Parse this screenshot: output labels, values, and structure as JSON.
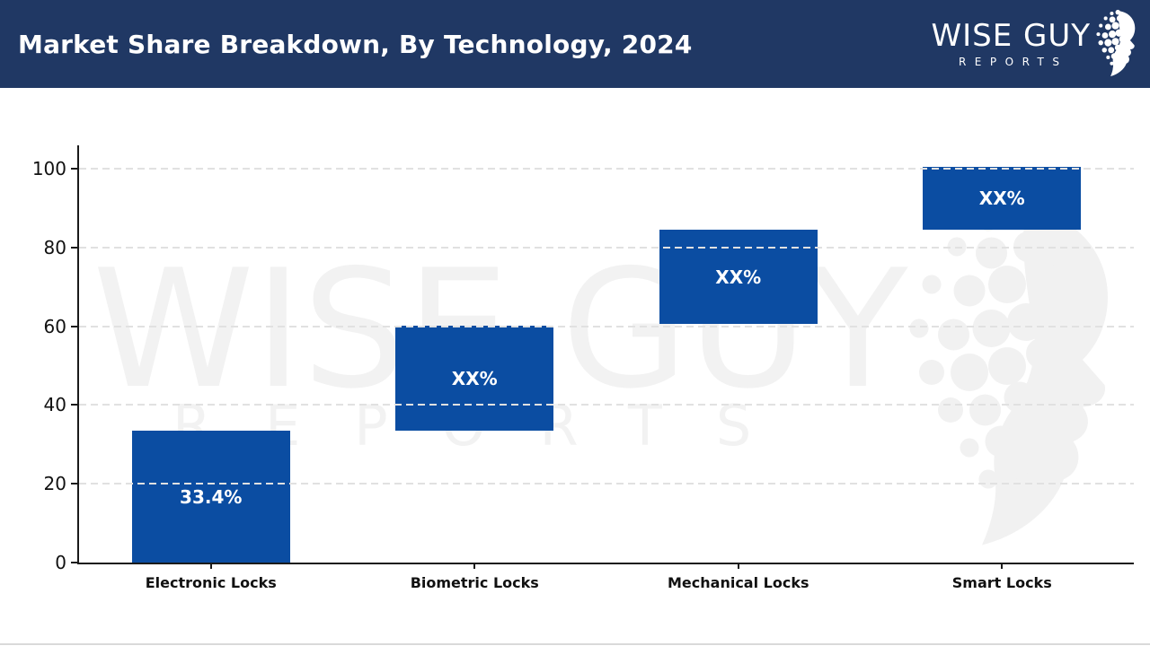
{
  "header": {
    "title": "Market Share Breakdown, By Technology, 2024",
    "logo": {
      "name": "WISE GUY",
      "sub": "REPORTS"
    }
  },
  "watermark": {
    "name": "WISE GUY",
    "sub": "REPORTS"
  },
  "chart_data": {
    "type": "bar",
    "variant": "floating-waterfall",
    "title": "Market Share Breakdown, By Technology, 2024",
    "unit": "%",
    "categories": [
      "Electronic Locks",
      "Biometric Locks",
      "Mechanical Locks",
      "Smart Locks"
    ],
    "series": [
      {
        "name": "Market Share",
        "segments": [
          {
            "category": "Electronic Locks",
            "start": 0,
            "end": 33.4,
            "label": "33.4%"
          },
          {
            "category": "Biometric Locks",
            "start": 33.4,
            "end": 60.2,
            "label": "XX%"
          },
          {
            "category": "Mechanical Locks",
            "start": 60.6,
            "end": 84.4,
            "label": "XX%"
          },
          {
            "category": "Smart Locks",
            "start": 84.6,
            "end": 100.4,
            "label": "XX%"
          }
        ]
      }
    ],
    "ylim": [
      0,
      100
    ],
    "yticks": [
      0,
      20,
      40,
      60,
      80,
      100
    ],
    "xlabel": "",
    "ylabel": "",
    "grid": "horizontal-dashed, drawn above bars",
    "legend": "none",
    "colors": {
      "bar": "#0b4da2",
      "bar_label": "#ffffff",
      "axis": "#1a1a1a",
      "grid": "#e1e1e1",
      "header_bg": "#203864",
      "watermark": "#f2f2f2"
    }
  }
}
